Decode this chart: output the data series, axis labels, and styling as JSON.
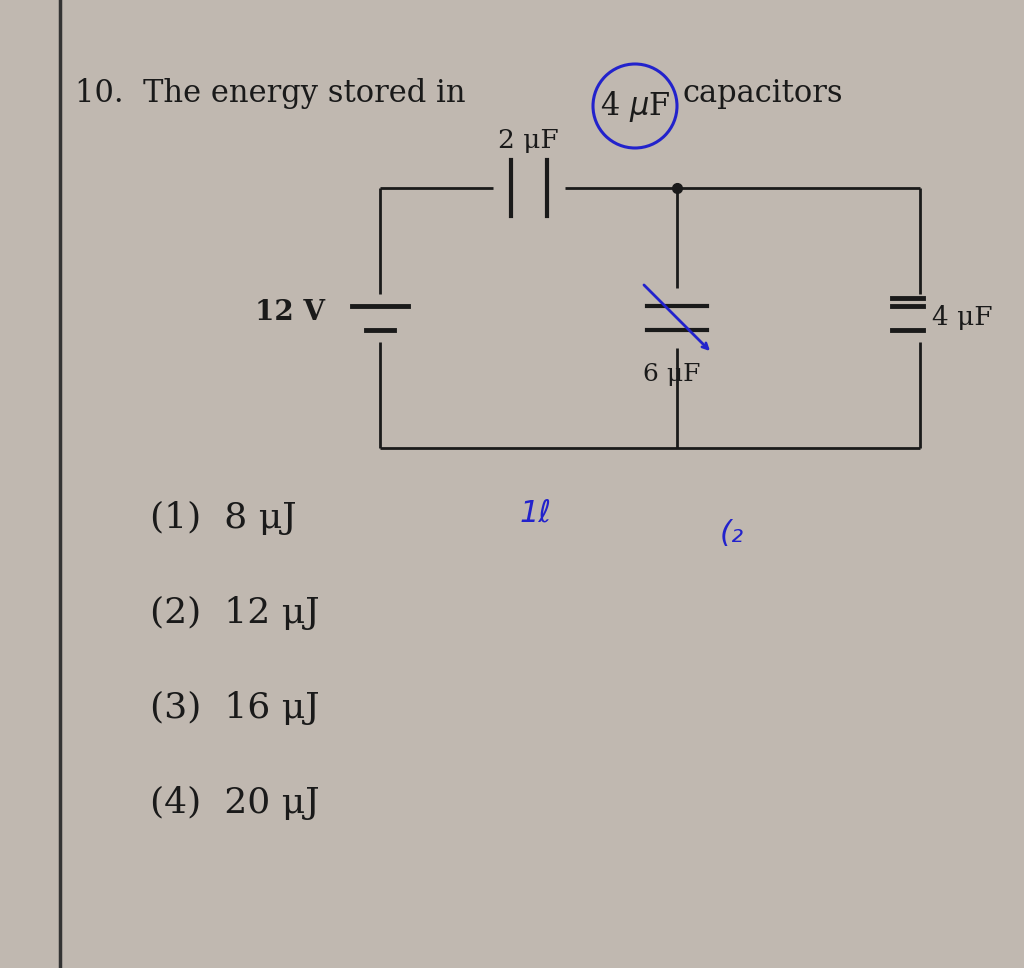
{
  "background_color": "#d8d8d8",
  "page_bg": "#c8c8c8",
  "title_text": "10.  The energy stored in",
  "title_circle_text": "4 μF",
  "title_suffix": "capacitors",
  "circuit_label_2uF": "2 μF",
  "circuit_label_6uF": "6 μF",
  "circuit_label_4uF": "4 μF",
  "circuit_label_12V": "12 V",
  "options": [
    "(1)  8 μJ",
    "(2)  12 μJ",
    "(3)  16 μJ",
    "(4)  20 μJ"
  ],
  "handwritten_annotations": [
    "1ℓ",
    "(₂"
  ],
  "text_color": "#1a1a1a",
  "circuit_color": "#1a1a1a",
  "annotation_color": "#2222cc",
  "circle_color": "#2222cc",
  "font_size_title": 22,
  "font_size_options": 26,
  "font_size_labels": 18
}
